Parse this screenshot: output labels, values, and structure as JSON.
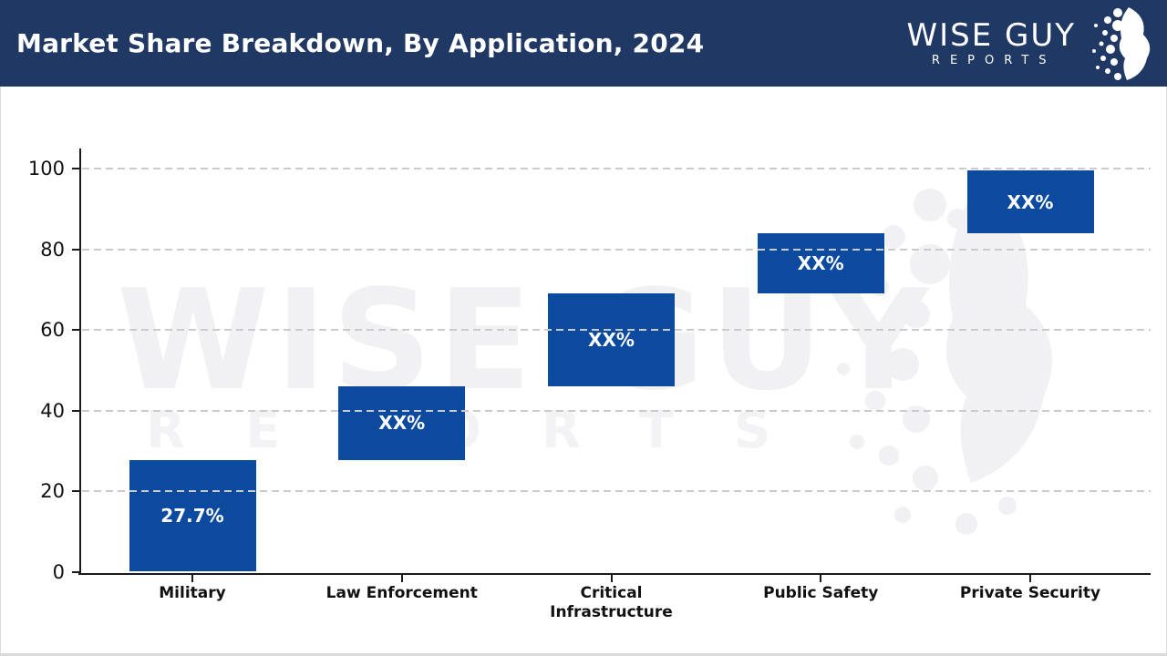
{
  "header": {
    "title": "Market Share Breakdown, By Application, 2024",
    "bg_color": "#203864",
    "logo": {
      "line1": "WISE GUY",
      "line2": "REPORTS"
    }
  },
  "watermark": {
    "line1": "WISE GUY",
    "line2": "REPORTS"
  },
  "chart_data": {
    "type": "bar",
    "subtype": "waterfall",
    "title": "Market Share Breakdown, By Application, 2024",
    "categories": [
      "Military",
      "Law Enforcement",
      "Critical Infrastructure",
      "Public Safety",
      "Private Security"
    ],
    "segments": [
      {
        "category": "Military",
        "label": "27.7%",
        "start": 0,
        "end": 27.7
      },
      {
        "category": "Law Enforcement",
        "label": "XX%",
        "start": 27.7,
        "end": 46
      },
      {
        "category": "Critical Infrastructure",
        "label": "XX%",
        "start": 46,
        "end": 69
      },
      {
        "category": "Public Safety",
        "label": "XX%",
        "start": 69,
        "end": 84
      },
      {
        "category": "Private Security",
        "label": "XX%",
        "start": 84,
        "end": 99.5
      }
    ],
    "y_ticks": [
      0,
      20,
      40,
      60,
      80,
      100
    ],
    "ylim": [
      0,
      105
    ],
    "grid": "horizontal-dashed",
    "bar_color": "#0b4a9f",
    "label_color": "#ffffff",
    "grid_color": "#cbcbcb",
    "axis_color": "#1a1a1a",
    "legend": "none"
  }
}
